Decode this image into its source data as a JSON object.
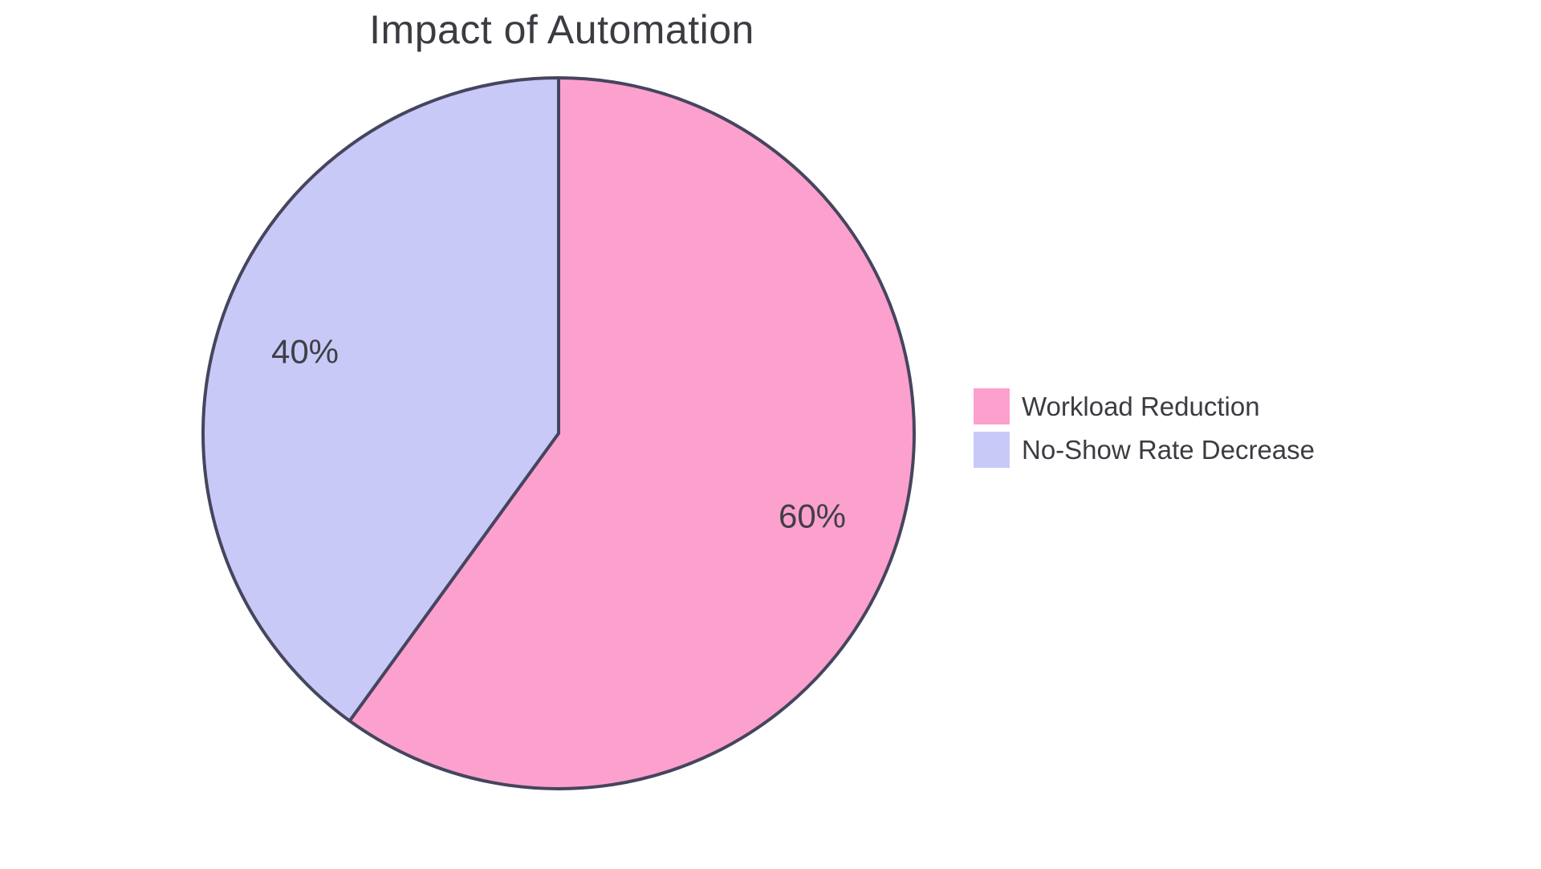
{
  "chart_data": {
    "type": "pie",
    "title": "Impact of Automation",
    "labels": [
      "Workload Reduction",
      "No-Show Rate Decrease"
    ],
    "values": [
      60,
      40
    ],
    "value_labels": [
      "60%",
      "40%"
    ],
    "colors": [
      "#FCA0CE",
      "#C9C9F8"
    ],
    "slice_border_color": "#45455E",
    "text_color": "#3B3B42",
    "start_angle": "12 o'clock",
    "direction": "clockwise",
    "legend_position": "right"
  }
}
